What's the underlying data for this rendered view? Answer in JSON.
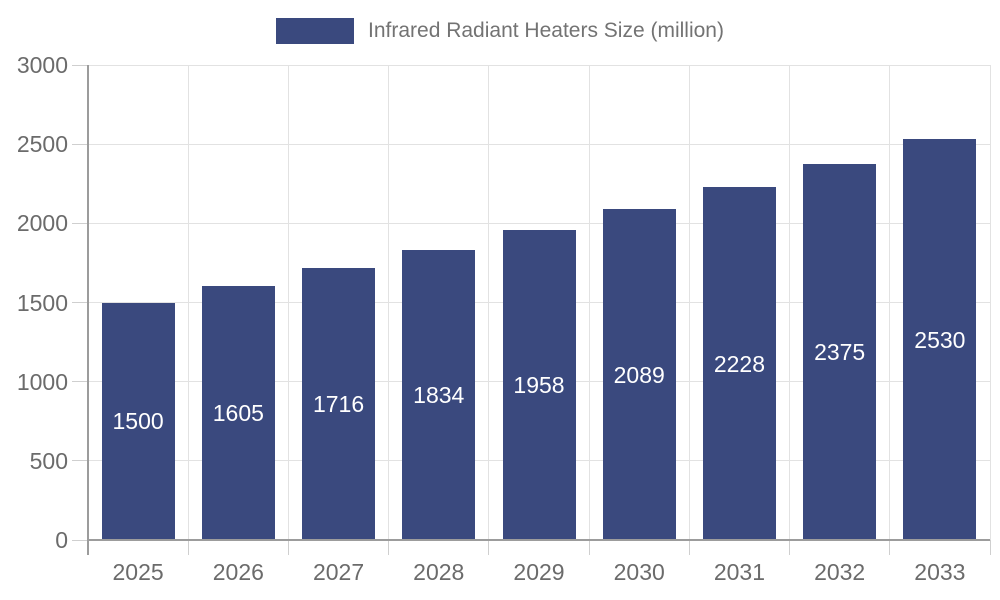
{
  "legend": {
    "label": "Infrared Radiant Heaters Size (million)"
  },
  "colors": {
    "bar": "#3a497e",
    "grid": "#e2e2e2",
    "axis": "#9c9c9c",
    "tick": "#cfcfcf",
    "tick_label": "#6b6b6b",
    "bar_label": "#ffffff",
    "legend_text": "#737373",
    "background": "#ffffff"
  },
  "chart_data": {
    "type": "bar",
    "title": "Infrared Radiant Heaters Size (million)",
    "categories": [
      "2025",
      "2026",
      "2027",
      "2028",
      "2029",
      "2030",
      "2031",
      "2032",
      "2033"
    ],
    "values": [
      1500,
      1605,
      1716,
      1834,
      1958,
      2089,
      2228,
      2375,
      2530
    ],
    "series_name": "Infrared Radiant Heaters Size (million)",
    "xlabel": "",
    "ylabel": "",
    "ylim": [
      0,
      3000
    ],
    "yticks": [
      0,
      500,
      1000,
      1500,
      2000,
      2500,
      3000
    ],
    "grid": true,
    "legend_position": "top",
    "value_labels": "inside-middle"
  }
}
